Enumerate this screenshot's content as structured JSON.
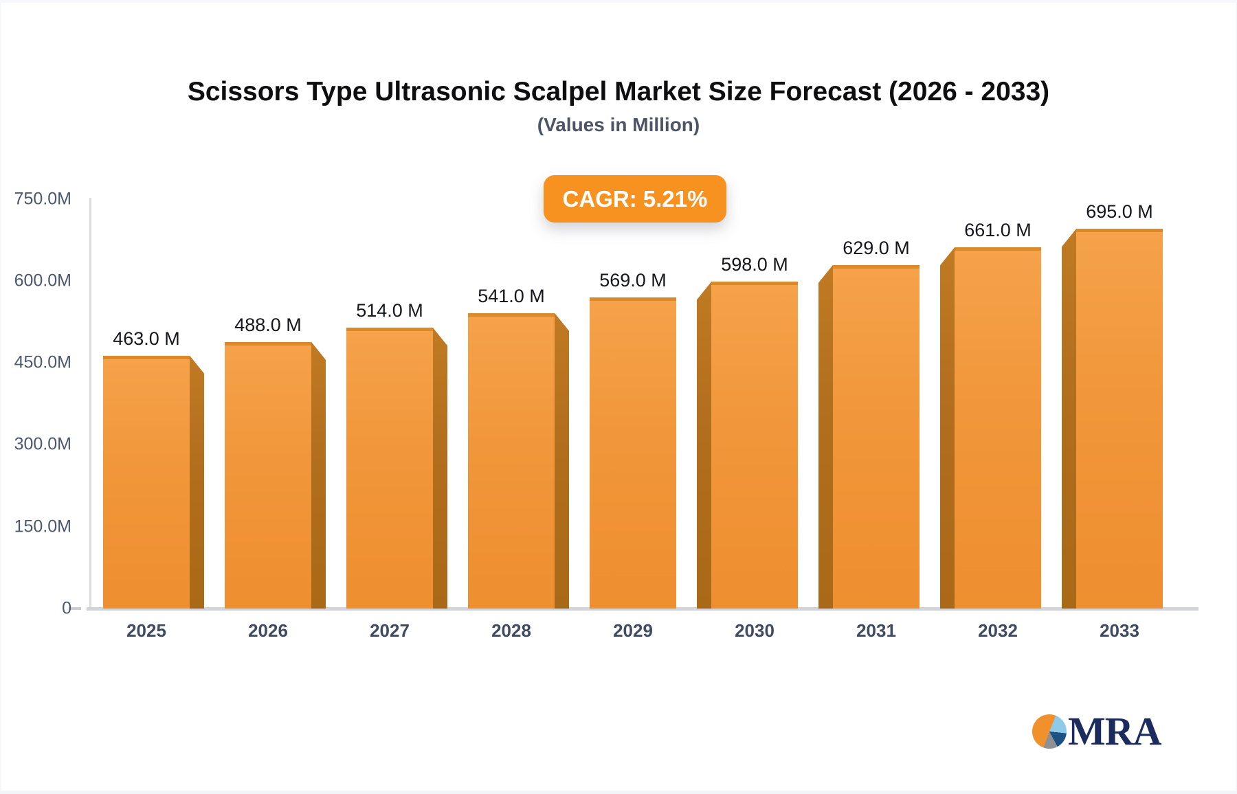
{
  "header": {
    "title": "Scissors Type Ultrasonic Scalpel Market Size Forecast (2026 - 2033)",
    "subtitle": "(Values in Million)",
    "cagr_label": "CAGR: 5.21%"
  },
  "logo": {
    "text": "MRA"
  },
  "colors": {
    "bar_face": "#F1963A",
    "bar_face_light": "#F5A24A",
    "bar_side": "#B26F1E",
    "bar_top_cap": "#DA8A2A",
    "badge_orange": "#F7911F",
    "axis_gray": "#D2D4D9",
    "title_text": "#0E0E10",
    "subtitle_text": "#4C5568",
    "tick_text": "#4B5870",
    "year_text": "#3E4B62",
    "value_text": "#15171C",
    "logo_navy": "#1B2B5E",
    "logo_orange": "#F0912C",
    "logo_light_blue": "#8ECBE9",
    "logo_steel_blue": "#1D5083",
    "logo_gray": "#8F9094"
  },
  "chart_data": {
    "type": "bar",
    "title": "Scissors Type Ultrasonic Scalpel Market Size Forecast (2026 - 2033)",
    "subtitle": "(Values in Million)",
    "annotation": "CAGR: 5.21%",
    "categories": [
      "2025",
      "2026",
      "2027",
      "2028",
      "2029",
      "2030",
      "2031",
      "2032",
      "2033"
    ],
    "values": [
      463,
      488,
      514,
      541,
      569,
      598,
      629,
      661,
      695
    ],
    "value_labels": [
      "463.0 M",
      "488.0 M",
      "514.0 M",
      "541.0 M",
      "569.0 M",
      "598.0 M",
      "629.0 M",
      "661.0 M",
      "695.0 M"
    ],
    "xlabel": "",
    "ylabel": "",
    "ylim": [
      0,
      750
    ],
    "y_ticks": [
      {
        "label": "750.0M",
        "value": 750
      },
      {
        "label": "600.0M",
        "value": 600
      },
      {
        "label": "450.0M",
        "value": 450
      },
      {
        "label": "300.0M",
        "value": 300
      },
      {
        "label": "150.0M",
        "value": 150
      },
      {
        "label": "0",
        "value": 0
      }
    ],
    "grid": false,
    "legend": false,
    "style": "pseudo-3d bars, orange, central vanishing point (left bars beveled right, right bars beveled left)"
  }
}
